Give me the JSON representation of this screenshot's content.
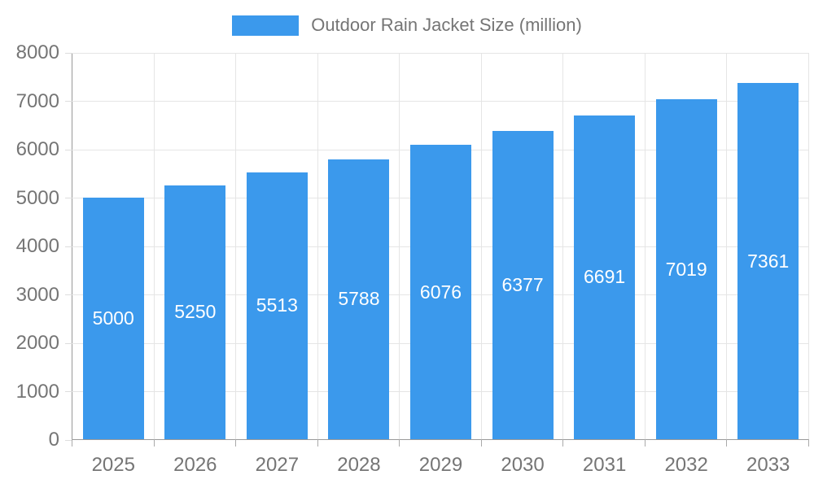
{
  "chart_data": {
    "type": "bar",
    "title": "Outdoor Rain Jacket Size (million)",
    "categories": [
      "2025",
      "2026",
      "2027",
      "2028",
      "2029",
      "2030",
      "2031",
      "2032",
      "2033"
    ],
    "series": [
      {
        "name": "Outdoor Rain Jacket Size (million)",
        "values": [
          5000,
          5250,
          5513,
          5788,
          6076,
          6377,
          6691,
          7019,
          7361
        ]
      }
    ],
    "values": [
      5000,
      5250,
      5513,
      5788,
      6076,
      6377,
      6691,
      7019,
      7361
    ],
    "value_labels": [
      "5000",
      "5250",
      "5513",
      "5788",
      "6076",
      "6377",
      "6691",
      "7019",
      "7361"
    ],
    "xlabel": "",
    "ylabel": "",
    "ylim": [
      0,
      8000
    ],
    "yticks": [
      0,
      1000,
      2000,
      3000,
      4000,
      5000,
      6000,
      7000,
      8000
    ],
    "grid": true,
    "legend_position": "top-center",
    "colors": {
      "bar": "#3B99EC",
      "value_label": "#FFFFFF",
      "axis_text": "#757575",
      "grid_line": "#E5E5E5",
      "axis_line": "#999999"
    }
  }
}
